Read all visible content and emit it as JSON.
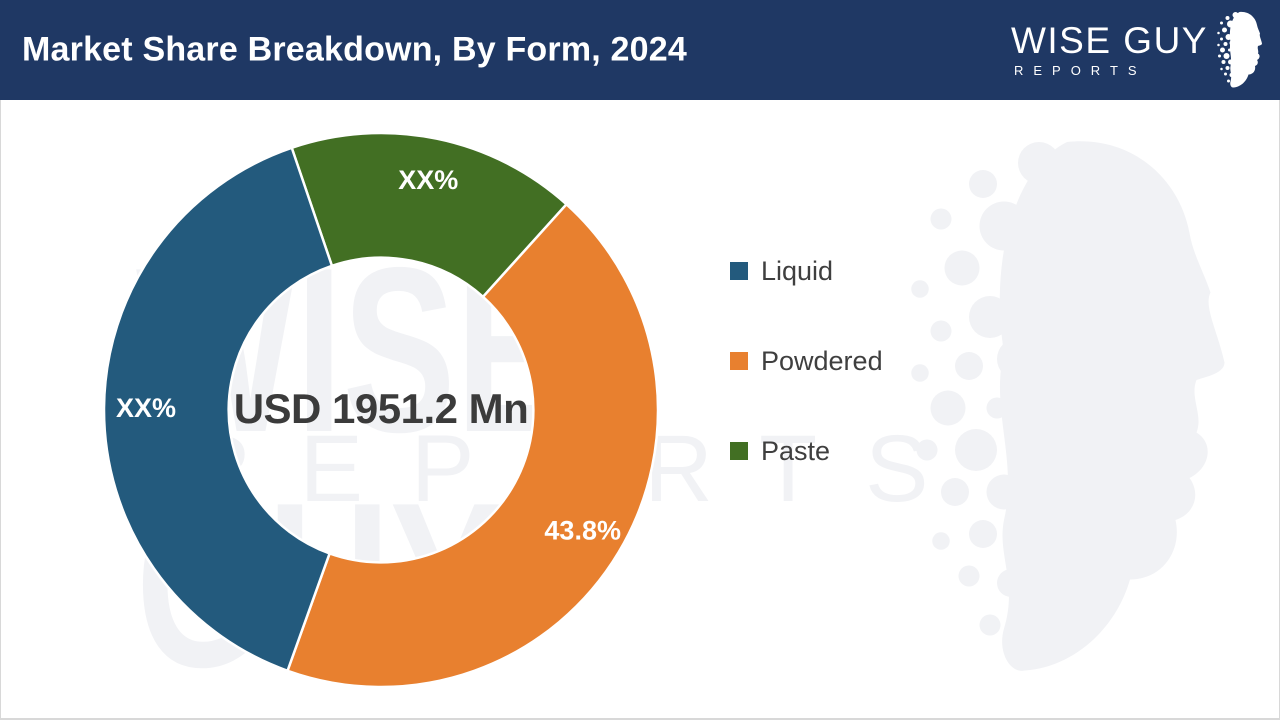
{
  "header": {
    "title": "Market Share Breakdown, By Form, 2024",
    "logo": {
      "name": "WISE GUY",
      "subtitle": "REPORTS"
    }
  },
  "chart_data": {
    "type": "donut",
    "title": "Market Share Breakdown, By Form, 2024",
    "center_label": "USD 1951.2 Mn",
    "start_angle_deg": -18.8,
    "donut_hole_ratio": 0.55,
    "legend_position": "right",
    "segments": [
      {
        "name": "Paste",
        "display_label": "XX%",
        "value_est_pct": 16.9,
        "color": "#426F23"
      },
      {
        "name": "Powdered",
        "display_label": "43.8%",
        "value_est_pct": 43.8,
        "color": "#E8802F"
      },
      {
        "name": "Liquid",
        "display_label": "XX%",
        "value_est_pct": 39.3,
        "color": "#235A7D"
      }
    ]
  },
  "legend": {
    "items": [
      {
        "label": "Liquid",
        "color": "#235A7D"
      },
      {
        "label": "Powdered",
        "color": "#E8802F"
      },
      {
        "label": "Paste",
        "color": "#426F23"
      }
    ]
  },
  "watermark": {
    "line1": "WISE GUY",
    "line2": "REPORTS"
  },
  "colors": {
    "header_bg": "#1F3864",
    "accent_blue": "#235A7D",
    "accent_orange": "#E8802F",
    "accent_green": "#426F23",
    "center_text": "#3B3B3B",
    "watermark": "#F1F2F5",
    "frame_border": "#D8D8D8"
  }
}
